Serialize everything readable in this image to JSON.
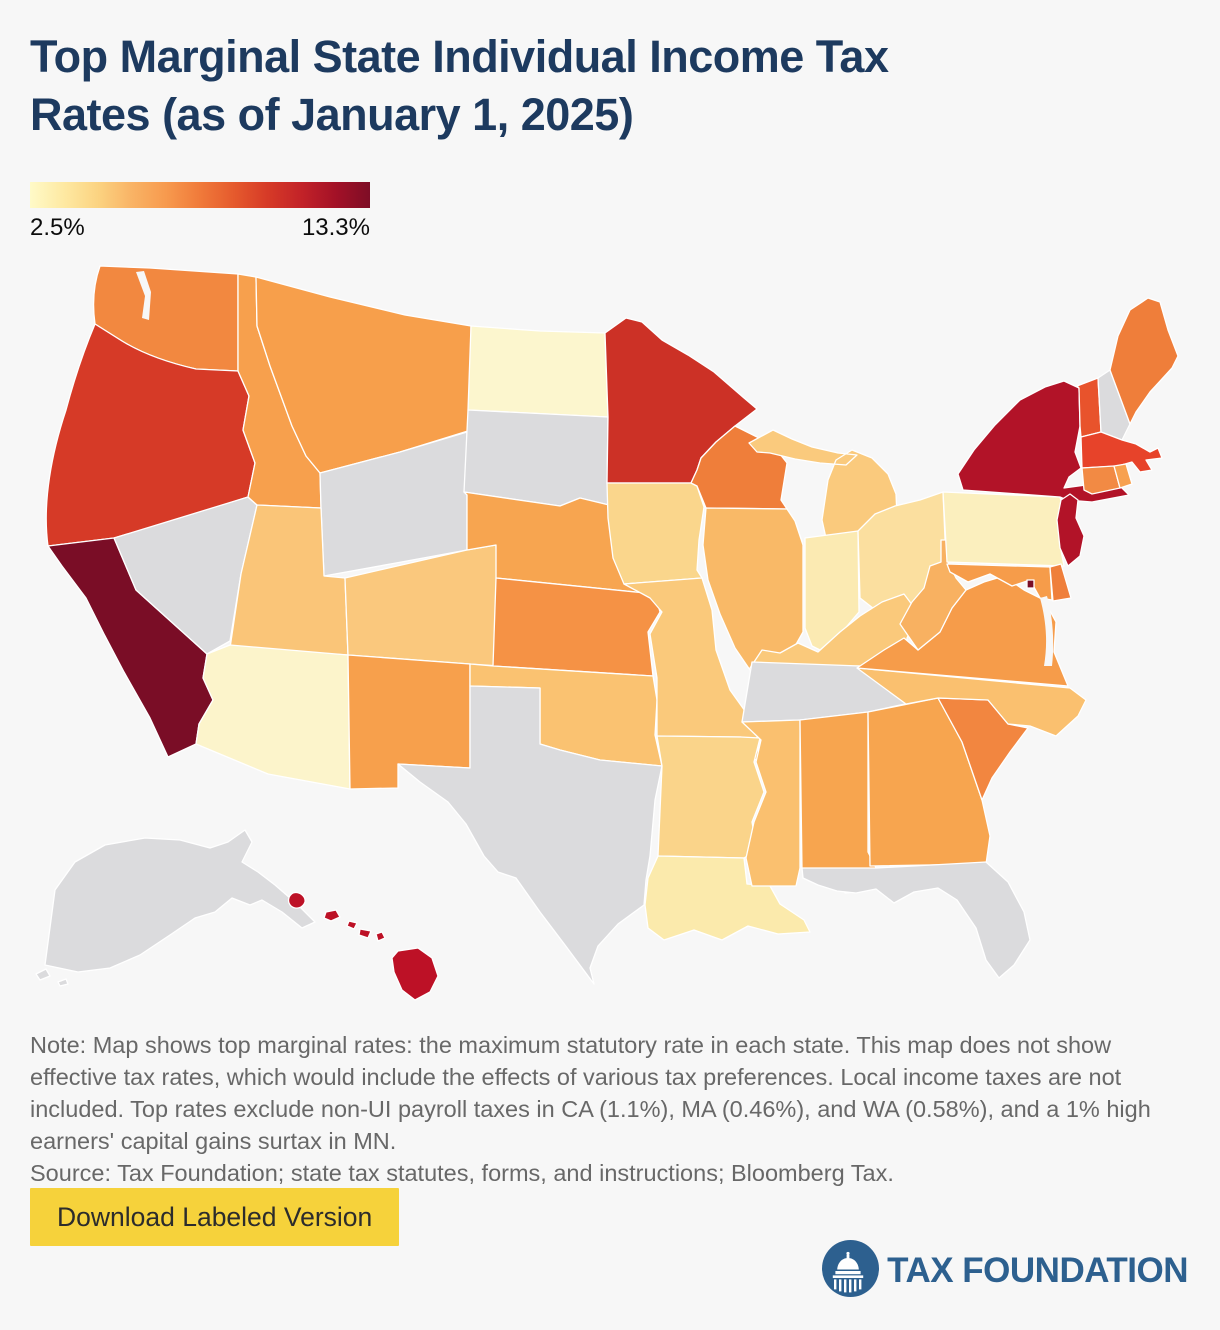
{
  "page": {
    "background": "#f7f7f7"
  },
  "header": {
    "title": "Top Marginal State Individual Income Tax Rates (as of January 1, 2025)",
    "title_lines": [
      "Top Marginal State Individual Income Tax",
      "Rates (as of January 1, 2025)"
    ],
    "title_color": "#1d3a5f"
  },
  "legend": {
    "min_label": "2.5%",
    "max_label": "13.3%",
    "gradient": [
      "#fffac8",
      "#fee9a2",
      "#fbd381",
      "#f9b365",
      "#f79a4e",
      "#f07a3a",
      "#e55a2d",
      "#d63a27",
      "#c22228",
      "#a31127",
      "#7e0d26"
    ]
  },
  "map": {
    "border_color": "#ffffff",
    "no_tax_fill": "#dbdbdd",
    "states": [
      {
        "id": "AK",
        "name": "Alaska",
        "fill": "#dbdbdd"
      },
      {
        "id": "HI",
        "name": "Hawaii",
        "fill": "#bd1126"
      },
      {
        "id": "WA",
        "name": "Washington",
        "fill": "#f28840"
      },
      {
        "id": "OR",
        "name": "Oregon",
        "fill": "#d63a27"
      },
      {
        "id": "CA",
        "name": "California",
        "fill": "#7a0d26"
      },
      {
        "id": "NV",
        "name": "Nevada",
        "fill": "#dbdbdd"
      },
      {
        "id": "ID",
        "name": "Idaho",
        "fill": "#f7a04d"
      },
      {
        "id": "MT",
        "name": "Montana",
        "fill": "#f79f4b"
      },
      {
        "id": "WY",
        "name": "Wyoming",
        "fill": "#dbdbdd"
      },
      {
        "id": "UT",
        "name": "Utah",
        "fill": "#fac578"
      },
      {
        "id": "CO",
        "name": "Colorado",
        "fill": "#fac87d"
      },
      {
        "id": "AZ",
        "name": "Arizona",
        "fill": "#fcf4cb"
      },
      {
        "id": "NM",
        "name": "New Mexico",
        "fill": "#f7a04c"
      },
      {
        "id": "ND",
        "name": "North Dakota",
        "fill": "#fcf6ce"
      },
      {
        "id": "SD",
        "name": "South Dakota",
        "fill": "#dbdbdd"
      },
      {
        "id": "NE",
        "name": "Nebraska",
        "fill": "#f7a550"
      },
      {
        "id": "KS",
        "name": "Kansas",
        "fill": "#f59245"
      },
      {
        "id": "OK",
        "name": "Oklahoma",
        "fill": "#fac271"
      },
      {
        "id": "TX",
        "name": "Texas",
        "fill": "#dbdbdd"
      },
      {
        "id": "MN",
        "name": "Minnesota",
        "fill": "#cc3126"
      },
      {
        "id": "IA",
        "name": "Iowa",
        "fill": "#fad68c"
      },
      {
        "id": "MO",
        "name": "Missouri",
        "fill": "#fac97b"
      },
      {
        "id": "AR",
        "name": "Arkansas",
        "fill": "#fad48a"
      },
      {
        "id": "LA",
        "name": "Louisiana",
        "fill": "#fbeaac"
      },
      {
        "id": "WI",
        "name": "Wisconsin",
        "fill": "#ef7e3a"
      },
      {
        "id": "IL",
        "name": "Illinois",
        "fill": "#f9b967"
      },
      {
        "id": "MI",
        "name": "Michigan",
        "fill": "#faca7d"
      },
      {
        "id": "IN",
        "name": "Indiana",
        "fill": "#fbeab2"
      },
      {
        "id": "OH",
        "name": "Ohio",
        "fill": "#fbdf9f"
      },
      {
        "id": "KY",
        "name": "Kentucky",
        "fill": "#fac97b"
      },
      {
        "id": "TN",
        "name": "Tennessee",
        "fill": "#dbdbdd"
      },
      {
        "id": "MS",
        "name": "Mississippi",
        "fill": "#fac06f"
      },
      {
        "id": "AL",
        "name": "Alabama",
        "fill": "#f7a54f"
      },
      {
        "id": "GA",
        "name": "Georgia",
        "fill": "#f7a54f"
      },
      {
        "id": "FL",
        "name": "Florida",
        "fill": "#dbdbdd"
      },
      {
        "id": "SC",
        "name": "South Carolina",
        "fill": "#f28640"
      },
      {
        "id": "NC",
        "name": "North Carolina",
        "fill": "#fac06f"
      },
      {
        "id": "VA",
        "name": "Virginia",
        "fill": "#f69c4a"
      },
      {
        "id": "WV",
        "name": "West Virginia",
        "fill": "#f8b161"
      },
      {
        "id": "PA",
        "name": "Pennsylvania",
        "fill": "#fbefbe"
      },
      {
        "id": "NY",
        "name": "New York",
        "fill": "#b21328"
      },
      {
        "id": "NJ",
        "name": "New Jersey",
        "fill": "#b21328"
      },
      {
        "id": "MD",
        "name": "Maryland",
        "fill": "#f69c4a"
      },
      {
        "id": "DE",
        "name": "Delaware",
        "fill": "#ef7f3b"
      },
      {
        "id": "VT",
        "name": "Vermont",
        "fill": "#e8532c"
      },
      {
        "id": "NH",
        "name": "New Hampshire",
        "fill": "#dbdbdd"
      },
      {
        "id": "ME",
        "name": "Maine",
        "fill": "#ef7e3a"
      },
      {
        "id": "MA",
        "name": "Massachusetts",
        "fill": "#e7432a"
      },
      {
        "id": "CT",
        "name": "Connecticut",
        "fill": "#f28a44"
      },
      {
        "id": "RI",
        "name": "Rhode Island",
        "fill": "#f7a150"
      },
      {
        "id": "DC",
        "name": "District of Columbia",
        "fill": "#7a0d26"
      }
    ]
  },
  "notes": {
    "note": "Note: Map shows top marginal rates: the maximum statutory rate in each state. This map does not show effective tax rates, which would include the effects of various tax preferences. Local income taxes are not included. Top rates exclude non-UI payroll taxes in CA (1.1%), MA (0.46%), and WA (0.58%), and a 1% high earners' capital gains surtax in MN.",
    "source": "Source: Tax Foundation; state tax statutes, forms, and instructions; Bloomberg Tax."
  },
  "actions": {
    "download_button": "Download Labeled Version",
    "button_bg": "#f6d23b"
  },
  "branding": {
    "logo_text": "TAX FOUNDATION",
    "logo_color": "#2d608f"
  }
}
